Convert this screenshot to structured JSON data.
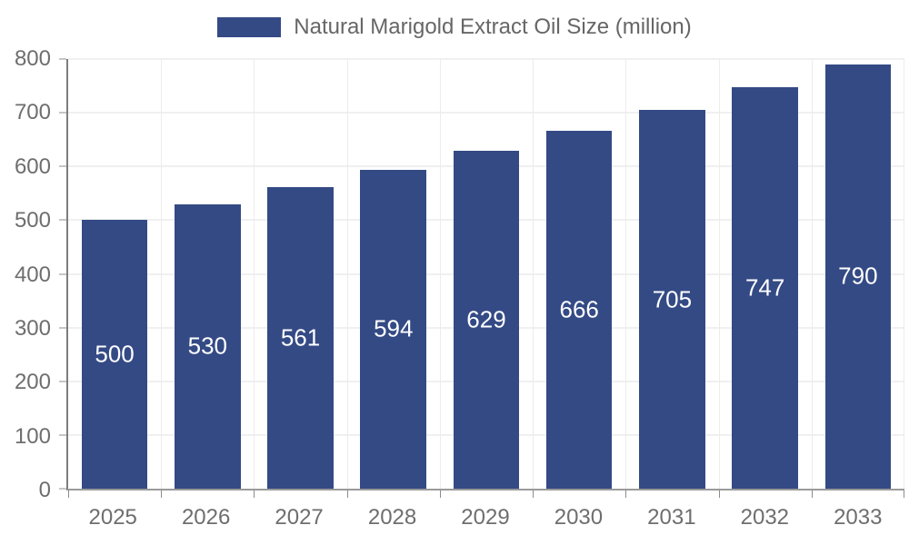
{
  "chart_data": {
    "type": "bar",
    "series_name": "Natural Marigold Extract Oil Size (million)",
    "categories": [
      "2025",
      "2026",
      "2027",
      "2028",
      "2029",
      "2030",
      "2031",
      "2032",
      "2033"
    ],
    "values": [
      500,
      530,
      561,
      594,
      629,
      666,
      705,
      747,
      790
    ],
    "ylim": [
      0,
      800
    ],
    "yticks": [
      0,
      100,
      200,
      300,
      400,
      500,
      600,
      700,
      800
    ],
    "grid": true,
    "legend_position": "top-center",
    "bar_color": "#344a85",
    "value_label_color": "#ffffff",
    "axis_label_color": "#6e6e6e",
    "value_labels_inside_bars": true
  }
}
